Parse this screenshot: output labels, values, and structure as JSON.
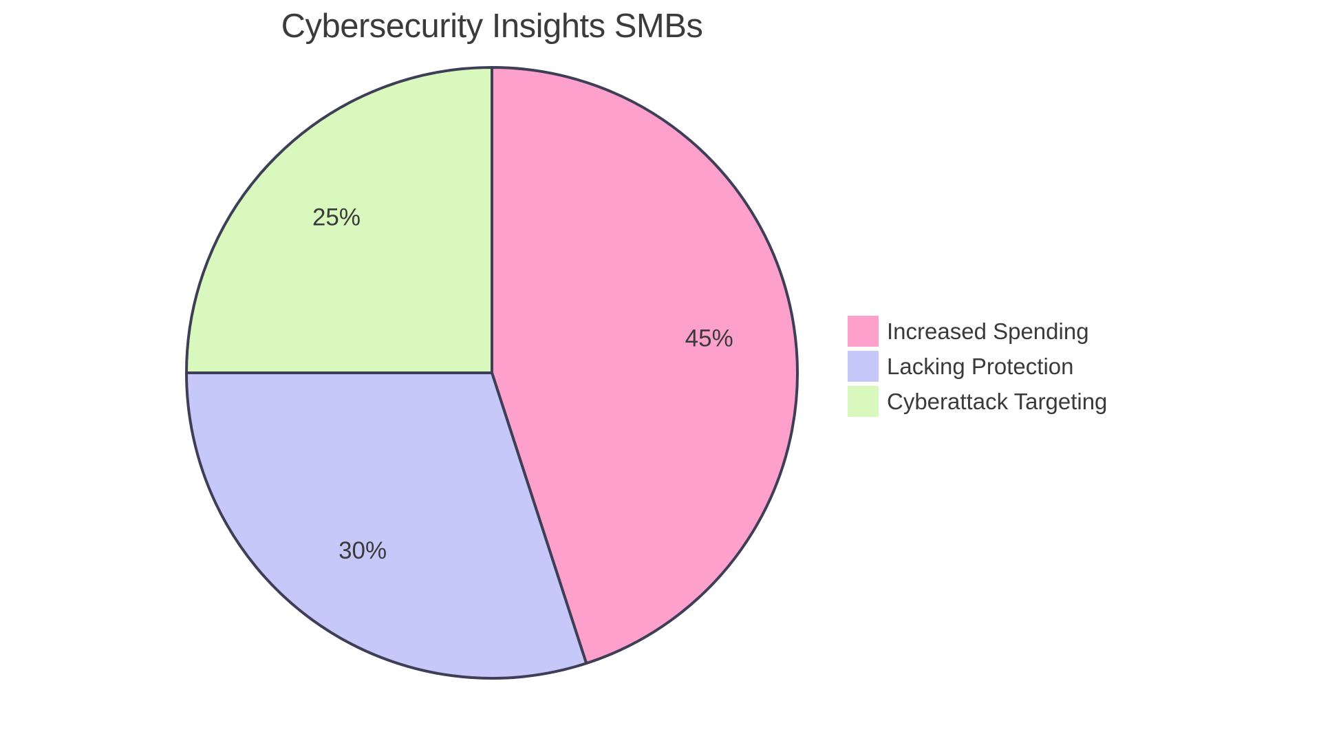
{
  "title": "Cybersecurity Insights SMBs",
  "chart_data": {
    "type": "pie",
    "title": "Cybersecurity Insights SMBs",
    "slices": [
      {
        "label": "Increased Spending",
        "value": 45,
        "percent_label": "45%",
        "color": "#FDA1CC"
      },
      {
        "label": "Lacking Protection",
        "value": 30,
        "percent_label": "30%",
        "color": "#C7C8FA"
      },
      {
        "label": "Cyberattack Targeting",
        "value": 25,
        "percent_label": "25%",
        "color": "#D9F8BD"
      }
    ],
    "start_angle_deg": 0,
    "direction": "clockwise",
    "slice_labels_shown": "percent",
    "legend_position": "right",
    "outline_color": "#3E3E56",
    "outline_width": 4,
    "label_color": "#3A3A3A",
    "title_color": "#3B3B3B",
    "background": "#FFFFFF"
  }
}
